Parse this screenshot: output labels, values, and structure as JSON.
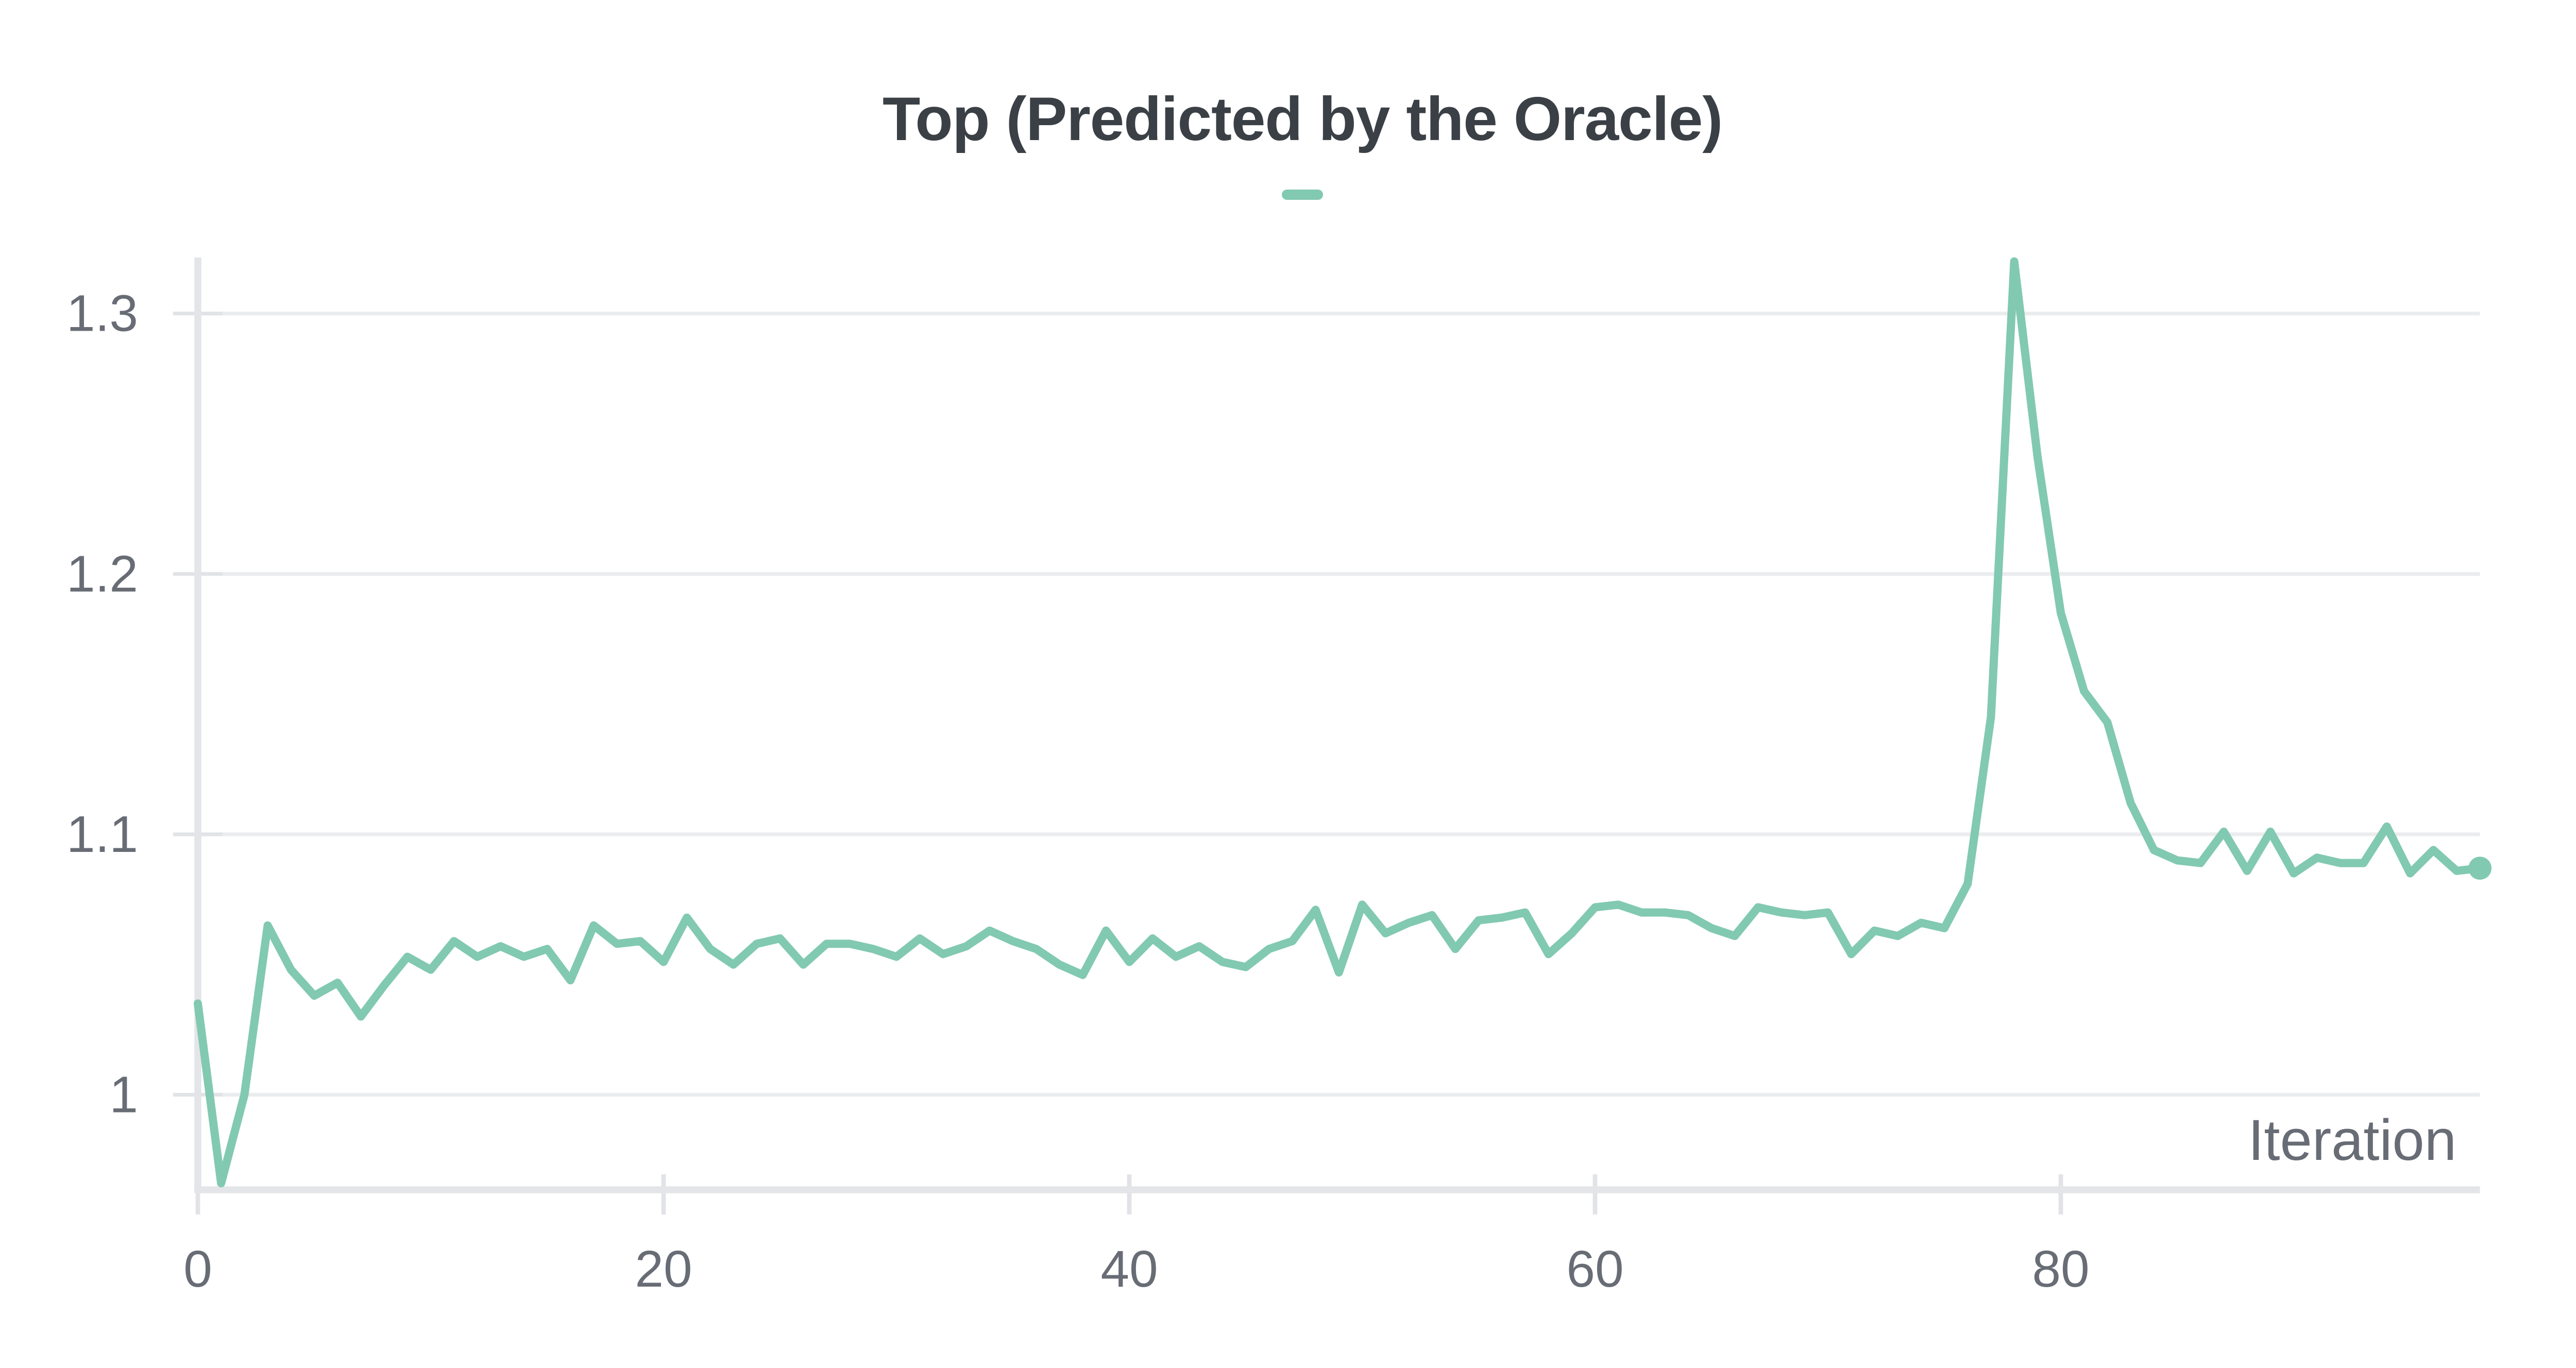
{
  "header": {
    "title": "Top (Predicted by the Oracle)"
  },
  "legend": {
    "position": "top-center",
    "entries": [
      {
        "label": "",
        "marker": "line-dash",
        "color": "#82c9b1"
      }
    ]
  },
  "axes": {
    "x_label": "Iteration",
    "y_label": ""
  },
  "colors": {
    "line": "#82c9b1",
    "title_text": "#3a4046",
    "tick_text": "#686c75",
    "gridline": "#ebecee",
    "axis_line": "#e4e5e8",
    "tick_mark": "#e2e3e7",
    "background": "#ffffff"
  },
  "chart_data": {
    "type": "line",
    "title": "Top (Predicted by the Oracle)",
    "xlabel": "Iteration",
    "ylabel": "",
    "x_range": [
      0,
      98
    ],
    "y_range": [
      0.9635,
      1.3215
    ],
    "x_ticks": [
      0,
      20,
      40,
      60,
      80
    ],
    "x_tick_labels": [
      "0",
      "20",
      "40",
      "60",
      "80"
    ],
    "y_ticks": [
      1,
      1.1,
      1.2,
      1.3
    ],
    "y_tick_labels": [
      "1",
      "1.1",
      "1.2",
      "1.3"
    ],
    "grid": "horizontal-only",
    "legend_position": "top-center",
    "series": [
      {
        "name": "Top (Predicted by the Oracle)",
        "color": "#82c9b1",
        "x_start": 0,
        "x_step": 1,
        "end_marker": "dot",
        "values": [
          1.035,
          0.966,
          1.0,
          1.065,
          1.048,
          1.038,
          1.043,
          1.03,
          1.042,
          1.053,
          1.048,
          1.059,
          1.053,
          1.057,
          1.053,
          1.056,
          1.044,
          1.065,
          1.058,
          1.059,
          1.051,
          1.068,
          1.056,
          1.05,
          1.058,
          1.06,
          1.05,
          1.058,
          1.058,
          1.056,
          1.053,
          1.06,
          1.054,
          1.057,
          1.063,
          1.059,
          1.056,
          1.05,
          1.046,
          1.063,
          1.051,
          1.06,
          1.053,
          1.057,
          1.051,
          1.049,
          1.056,
          1.059,
          1.071,
          1.047,
          1.073,
          1.062,
          1.066,
          1.069,
          1.056,
          1.067,
          1.068,
          1.07,
          1.054,
          1.062,
          1.072,
          1.073,
          1.07,
          1.07,
          1.069,
          1.064,
          1.061,
          1.072,
          1.07,
          1.069,
          1.07,
          1.054,
          1.063,
          1.061,
          1.066,
          1.064,
          1.081,
          1.145,
          1.32,
          1.245,
          1.185,
          1.155,
          1.143,
          1.112,
          1.094,
          1.09,
          1.089,
          1.101,
          1.086,
          1.101,
          1.085,
          1.091,
          1.089,
          1.089,
          1.103,
          1.085,
          1.094,
          1.086,
          1.087
        ]
      }
    ]
  }
}
